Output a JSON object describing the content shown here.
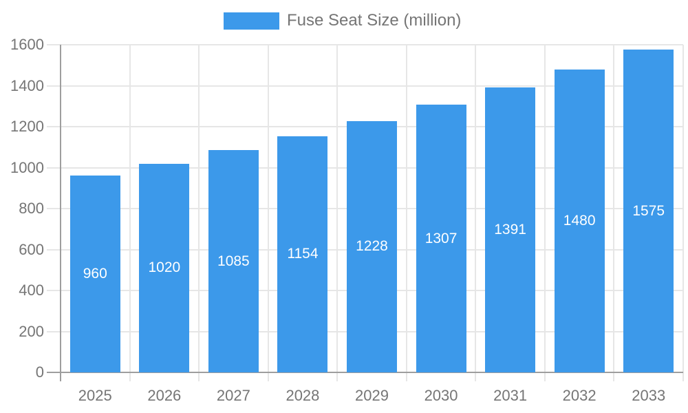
{
  "chart_data": {
    "type": "bar",
    "title": "",
    "legend": "Fuse Seat Size (million)",
    "legend_position": "top",
    "categories": [
      "2025",
      "2026",
      "2027",
      "2028",
      "2029",
      "2030",
      "2031",
      "2032",
      "2033"
    ],
    "series": [
      {
        "name": "Fuse Seat Size (million)",
        "values": [
          960,
          1020,
          1085,
          1154,
          1228,
          1307,
          1391,
          1480,
          1575
        ]
      }
    ],
    "values": [
      960,
      1020,
      1085,
      1154,
      1228,
      1307,
      1391,
      1480,
      1575
    ],
    "value_labels": [
      "960",
      "1020",
      "1085",
      "1154",
      "1228",
      "1307",
      "1391",
      "1480",
      "1575"
    ],
    "value_label_position": "inside-center",
    "xlabel": "",
    "ylabel": "",
    "ylim": [
      0,
      1600
    ],
    "ytick_step": 200,
    "yticks": [
      0,
      200,
      400,
      600,
      800,
      1000,
      1200,
      1400,
      1600
    ],
    "grid": true,
    "colors": {
      "bar": "#3C99EA",
      "grid": "#E6E6E6",
      "axis": "#9E9E9E",
      "tick_text": "#757575",
      "legend_text": "#757575",
      "value_text": "#FFFFFF",
      "background": "#FFFFFF"
    }
  }
}
